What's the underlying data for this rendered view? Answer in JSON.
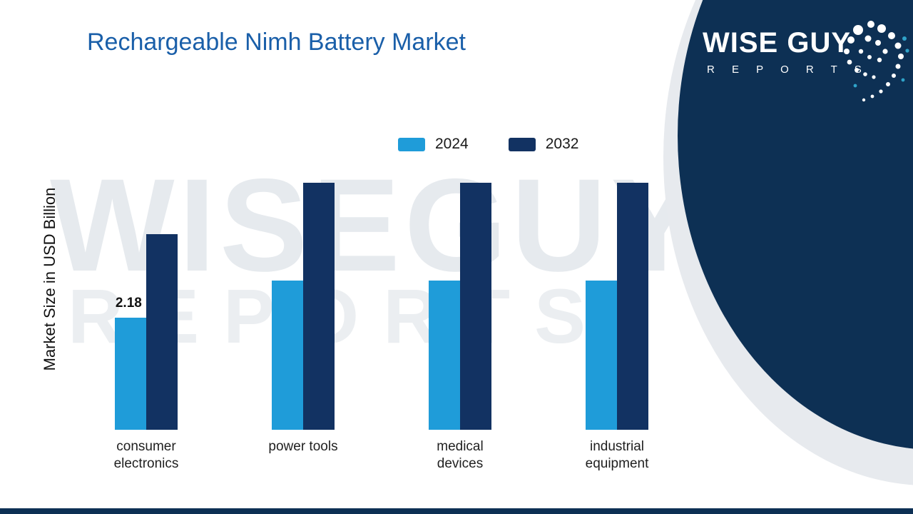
{
  "title": "Rechargeable Nimh Battery Market",
  "ylabel": "Market Size in USD Billion",
  "watermark": {
    "line1": "WISEGUY",
    "line2": "REPORTS"
  },
  "logo": {
    "line1": "WISE GUY",
    "line2": "R E P O R T S"
  },
  "colors": {
    "series2024": "#1f9cd9",
    "series2032": "#123262",
    "title": "#1a5fa9",
    "brand_bg": "#0d3054"
  },
  "chart_data": {
    "type": "bar",
    "categories": [
      "consumer electronics",
      "power tools",
      "medical devices",
      "industrial equipment"
    ],
    "series": [
      {
        "name": "2024",
        "color": "#1f9cd9",
        "values": [
          2.18,
          2.9,
          2.9,
          2.9
        ]
      },
      {
        "name": "2032",
        "color": "#123262",
        "values": [
          3.8,
          4.8,
          4.8,
          4.8
        ]
      }
    ],
    "title": "Rechargeable Nimh Battery Market",
    "xlabel": "",
    "ylabel": "Market Size in USD Billion",
    "ylim": [
      0,
      5.4
    ],
    "grid": false,
    "legend_position": "top",
    "annotations": [
      {
        "series": "2024",
        "category": "consumer electronics",
        "text": "2.18"
      }
    ]
  }
}
